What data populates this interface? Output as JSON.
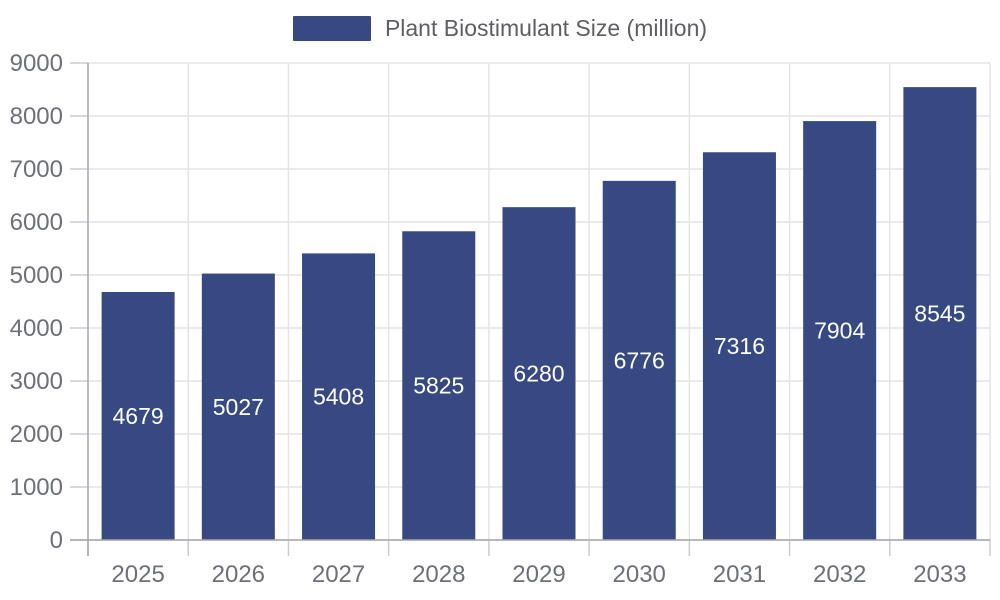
{
  "chart_data": {
    "type": "bar",
    "title": "Plant Biostimulant Size (million)",
    "legend": [
      "Plant Biostimulant Size (million)"
    ],
    "legend_position": "top-center",
    "categories": [
      "2025",
      "2026",
      "2027",
      "2028",
      "2029",
      "2030",
      "2031",
      "2032",
      "2033"
    ],
    "values": [
      4679,
      5027,
      5408,
      5825,
      6280,
      6776,
      7316,
      7904,
      8545
    ],
    "series": [
      {
        "name": "Plant Biostimulant Size (million)",
        "values": [
          4679,
          5027,
          5408,
          5825,
          6280,
          6776,
          7316,
          7904,
          8545
        ]
      }
    ],
    "xlabel": "",
    "ylabel": "",
    "ylim": [
      0,
      9000
    ],
    "yticks": [
      0,
      1000,
      2000,
      3000,
      4000,
      5000,
      6000,
      7000,
      8000,
      9000
    ],
    "grid": true,
    "value_labels": "inside-center",
    "colors": {
      "bar": "#364983",
      "value_label": "#ffffff",
      "axis_label": "#6e7079",
      "legend_text": "#5e5e64",
      "grid_line": "#e3e4e8",
      "tick_line": "#c9ccd3",
      "axis_line": "#a3a6ad",
      "background": "#ffffff"
    }
  }
}
